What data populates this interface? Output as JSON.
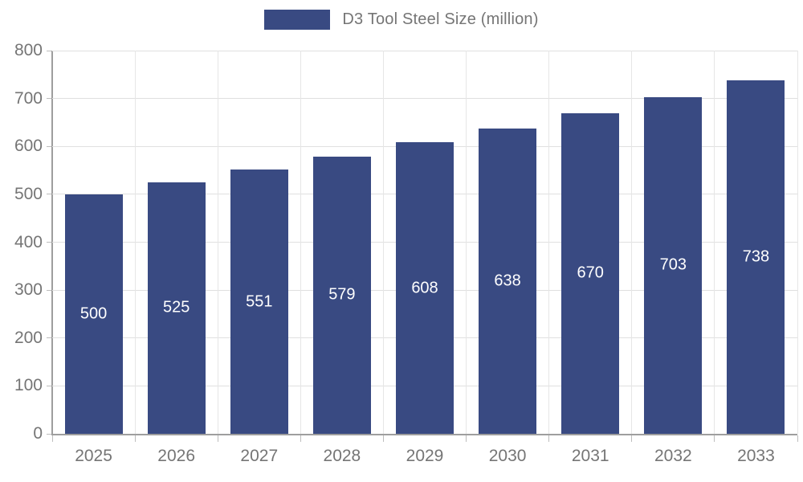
{
  "legend": {
    "label": "D3 Tool Steel Size (million)"
  },
  "chart_data": {
    "type": "bar",
    "title": "D3 Tool Steel Size (million)",
    "categories": [
      "2025",
      "2026",
      "2027",
      "2028",
      "2029",
      "2030",
      "2031",
      "2032",
      "2033"
    ],
    "values": [
      500,
      525,
      551,
      579,
      608,
      638,
      670,
      703,
      738
    ],
    "xlabel": "",
    "ylabel": "",
    "ylim": [
      0,
      800
    ],
    "ytick_step": 100,
    "grid": "on",
    "legend_position": "top",
    "value_labels": "inside-center"
  },
  "colors": {
    "bar": "#394a82",
    "value_label": "#ffffff",
    "tick_label": "#757575",
    "legend_text": "#757575",
    "axis": "#9e9e9e",
    "gridline": "#e0e0e0",
    "background": "#ffffff"
  }
}
